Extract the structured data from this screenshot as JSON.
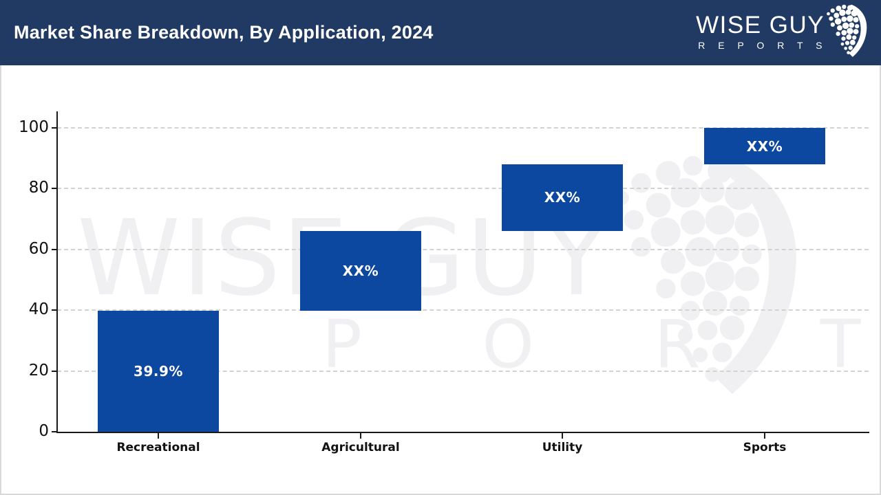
{
  "header": {
    "title": "Market Share Breakdown, By Application, 2024",
    "logo": {
      "line1": "WISE GUY",
      "line2": "R E P O R T S"
    }
  },
  "watermark": {
    "line1": "WISE GUY",
    "line2": "P O R T S"
  },
  "chart_data": {
    "type": "bar",
    "subtype": "waterfall",
    "title": "Market Share Breakdown, By Application, 2024",
    "categories": [
      "Recreational",
      "Agricultural",
      "Utility",
      "Sports"
    ],
    "segments": [
      {
        "category": "Recreational",
        "start": 0,
        "end": 39.9,
        "label": "39.9%"
      },
      {
        "category": "Agricultural",
        "start": 39.9,
        "end": 66.1,
        "label": "XX%"
      },
      {
        "category": "Utility",
        "start": 66.1,
        "end": 88.0,
        "label": "XX%"
      },
      {
        "category": "Sports",
        "start": 88.0,
        "end": 100.0,
        "label": "XX%"
      }
    ],
    "yticks": [
      0,
      20,
      40,
      60,
      80,
      100
    ],
    "ylim": [
      0,
      105
    ],
    "xlabel": "",
    "ylabel": "",
    "grid": "horizontal-dashed",
    "legend": "none",
    "bar_color": "#0c47a0",
    "bar_label_color": "#ffffff",
    "axis_color": "#1a1a1a",
    "header_bg": "#203a64",
    "watermark_color": "#f0f0f2"
  }
}
